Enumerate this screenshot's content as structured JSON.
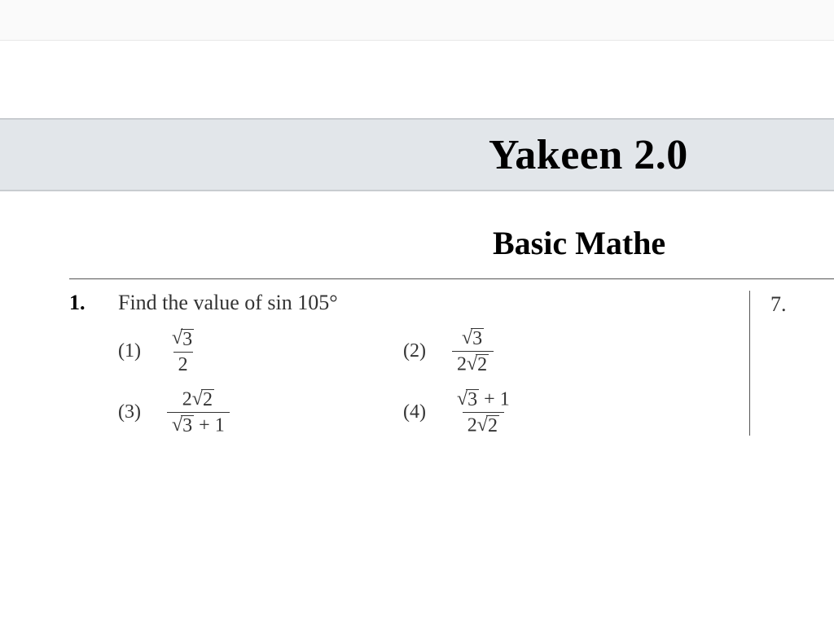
{
  "colors": {
    "page_bg": "#ffffff",
    "outer_bg": "#f5f5f5",
    "band_bg": "#e2e6ea",
    "band_border": "#c8ccd0",
    "text": "#222222",
    "divider": "#555555"
  },
  "typography": {
    "header_fontsize": 52,
    "section_fontsize": 40,
    "body_fontsize": 26,
    "font_family": "Georgia"
  },
  "header": {
    "title": "Yakeen 2.0"
  },
  "section": {
    "title": "Basic Mathe"
  },
  "question": {
    "number": "1.",
    "text": "Find the value of sin 105°",
    "options": [
      {
        "label": "(1)",
        "display": {
          "type": "frac",
          "num_sqrt": "3",
          "den": "2"
        }
      },
      {
        "label": "(2)",
        "display": {
          "type": "frac",
          "num_sqrt": "3",
          "den_prefix": "2",
          "den_sqrt": "2"
        }
      },
      {
        "label": "(3)",
        "display": {
          "type": "frac",
          "num_prefix": "2",
          "num_sqrt": "2",
          "den_sqrt": "3",
          "den_suffix": " + 1"
        }
      },
      {
        "label": "(4)",
        "display": {
          "type": "frac",
          "num_sqrt": "3",
          "num_suffix": " + 1",
          "den_prefix": "2",
          "den_sqrt": "2"
        }
      }
    ]
  },
  "right_question": {
    "number": "7."
  }
}
